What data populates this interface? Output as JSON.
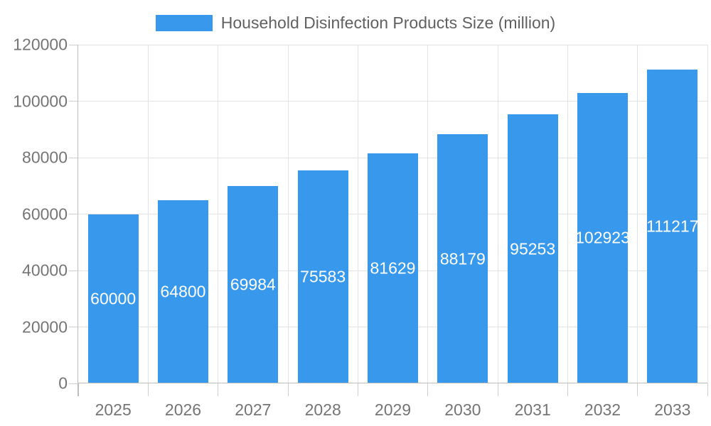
{
  "chart_data": {
    "type": "bar",
    "legend_entries": [
      "Household Disinfection Products Size (million)"
    ],
    "legend_position": "top",
    "categories": [
      "2025",
      "2026",
      "2027",
      "2028",
      "2029",
      "2030",
      "2031",
      "2032",
      "2033"
    ],
    "series": [
      {
        "name": "Household Disinfection Products Size (million)",
        "values": [
          60000,
          64800,
          69984,
          75583,
          81629,
          88179,
          95253,
          102923,
          111217
        ]
      }
    ],
    "value_labels": [
      "60000",
      "64800",
      "69984",
      "75583",
      "81629",
      "88179",
      "95253",
      "102923",
      "111217"
    ],
    "value_label_placement": "inside-center",
    "xlabel": "",
    "ylabel": "",
    "ylim": [
      0,
      120000
    ],
    "yticks": [
      0,
      20000,
      40000,
      60000,
      80000,
      100000,
      120000
    ],
    "ytick_labels": [
      "0",
      "20000",
      "40000",
      "60000",
      "80000",
      "100000",
      "120000"
    ],
    "grid": true
  },
  "style": {
    "bar_color": "#3899ec",
    "value_label_color": "#ffffff",
    "gridline_color": "#e3e3e3",
    "axis_line_color": "#bdbdbd",
    "tick_color": "#cfcfcf",
    "axis_label_color": "#757575",
    "legend_text_color": "#616161",
    "background_color": "#ffffff"
  }
}
